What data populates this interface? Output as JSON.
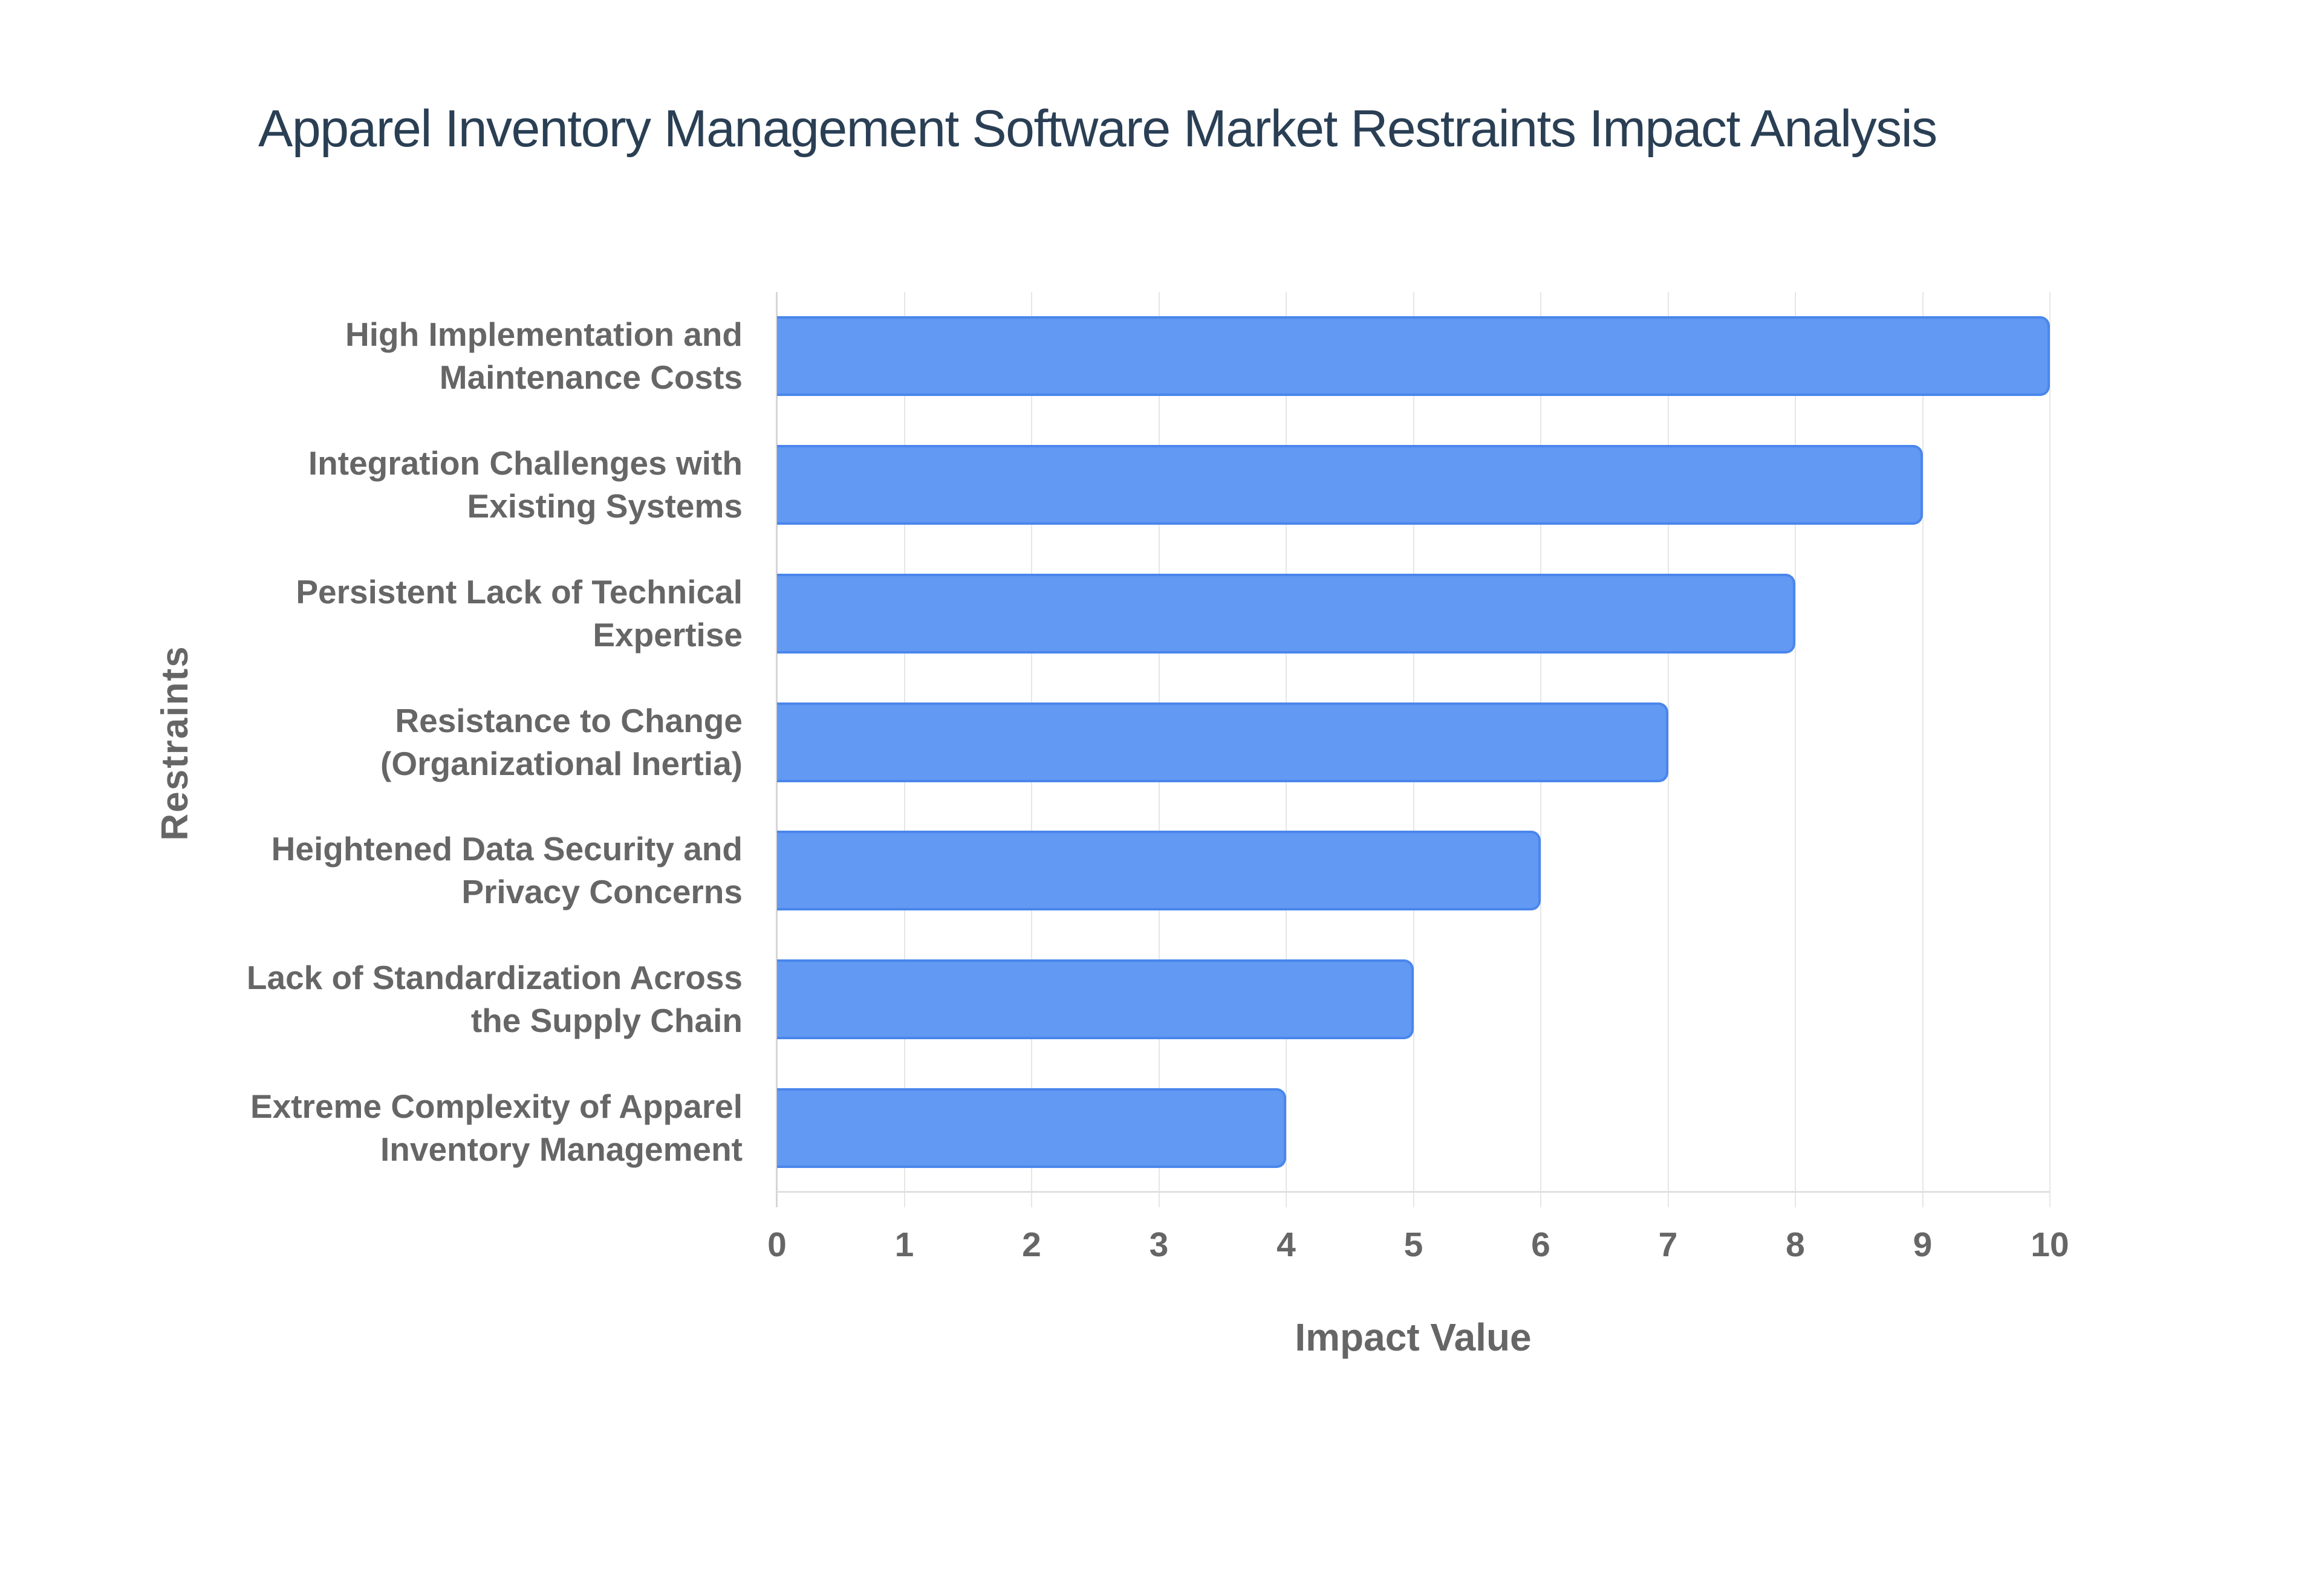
{
  "chart": {
    "title": "Apparel Inventory Management Software Market Restraints Impact Analysis",
    "x_axis_title": "Impact Value",
    "y_axis_title": "Restraints",
    "bar_fill": "#6199f3",
    "bar_border": "#4a86ec",
    "title_color": "#2a3f54",
    "axis_text_color": "#666666",
    "grid_color": "#e6e6e6",
    "x_ticks": [
      "0",
      "1",
      "2",
      "3",
      "4",
      "5",
      "6",
      "7",
      "8",
      "9",
      "10"
    ],
    "bars": [
      {
        "label_lines": [
          "High Implementation and",
          "Maintenance Costs"
        ],
        "value": 10
      },
      {
        "label_lines": [
          "Integration Challenges with",
          "Existing Systems"
        ],
        "value": 9
      },
      {
        "label_lines": [
          "Persistent Lack of Technical",
          "Expertise"
        ],
        "value": 8
      },
      {
        "label_lines": [
          "Resistance to Change",
          "(Organizational Inertia)"
        ],
        "value": 7
      },
      {
        "label_lines": [
          "Heightened Data Security and",
          "Privacy Concerns"
        ],
        "value": 6
      },
      {
        "label_lines": [
          "Lack of Standardization Across",
          "the Supply Chain"
        ],
        "value": 5
      },
      {
        "label_lines": [
          "Extreme Complexity of Apparel",
          "Inventory Management"
        ],
        "value": 4
      }
    ]
  },
  "chart_data": {
    "type": "bar",
    "orientation": "horizontal",
    "title": "Apparel Inventory Management Software Market Restraints Impact Analysis",
    "xlabel": "Impact Value",
    "ylabel": "Restraints",
    "categories": [
      "High Implementation and Maintenance Costs",
      "Integration Challenges with Existing Systems",
      "Persistent Lack of Technical Expertise",
      "Resistance to Change (Organizational Inertia)",
      "Heightened Data Security and Privacy Concerns",
      "Lack of Standardization Across the Supply Chain",
      "Extreme Complexity of Apparel Inventory Management"
    ],
    "values": [
      10,
      9,
      8,
      7,
      6,
      5,
      4
    ],
    "xlim": [
      0,
      10
    ],
    "x_ticks": [
      0,
      1,
      2,
      3,
      4,
      5,
      6,
      7,
      8,
      9,
      10
    ],
    "grid": {
      "vertical": true,
      "horizontal": false
    },
    "legend": null,
    "color": "#6199f3"
  }
}
